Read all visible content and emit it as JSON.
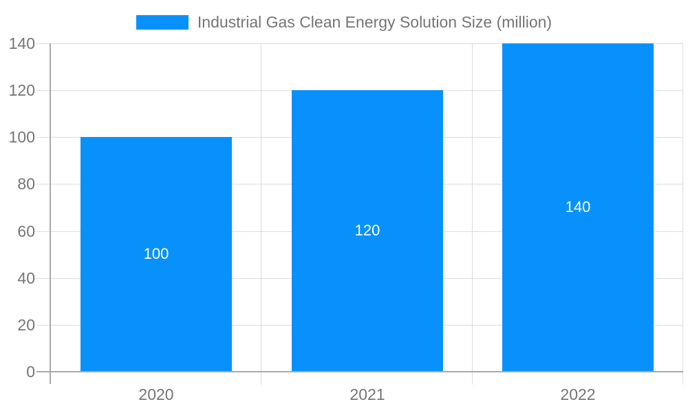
{
  "chart_data": {
    "type": "bar",
    "title": "Industrial Gas Clean Energy Solution Size (million)",
    "legend": [
      {
        "label": "Industrial Gas Clean Energy Solution Size (million)",
        "color": "#0991fb"
      }
    ],
    "legend_position": "top",
    "categories": [
      "2020",
      "2021",
      "2022"
    ],
    "values": [
      100,
      120,
      140
    ],
    "bar_labels": [
      "100",
      "120",
      "140"
    ],
    "xlabel": "",
    "ylabel": "",
    "ylim": [
      0,
      140
    ],
    "yticks": [
      0,
      20,
      40,
      60,
      80,
      100,
      120,
      140
    ],
    "grid": true,
    "colors": {
      "bar": "#0991fb",
      "bar_label_text": "#ffffff",
      "axis_text": "#757575",
      "axis_line": "#a9a9a9",
      "gridline": "#dcdcdc",
      "background": "#ffffff"
    }
  }
}
